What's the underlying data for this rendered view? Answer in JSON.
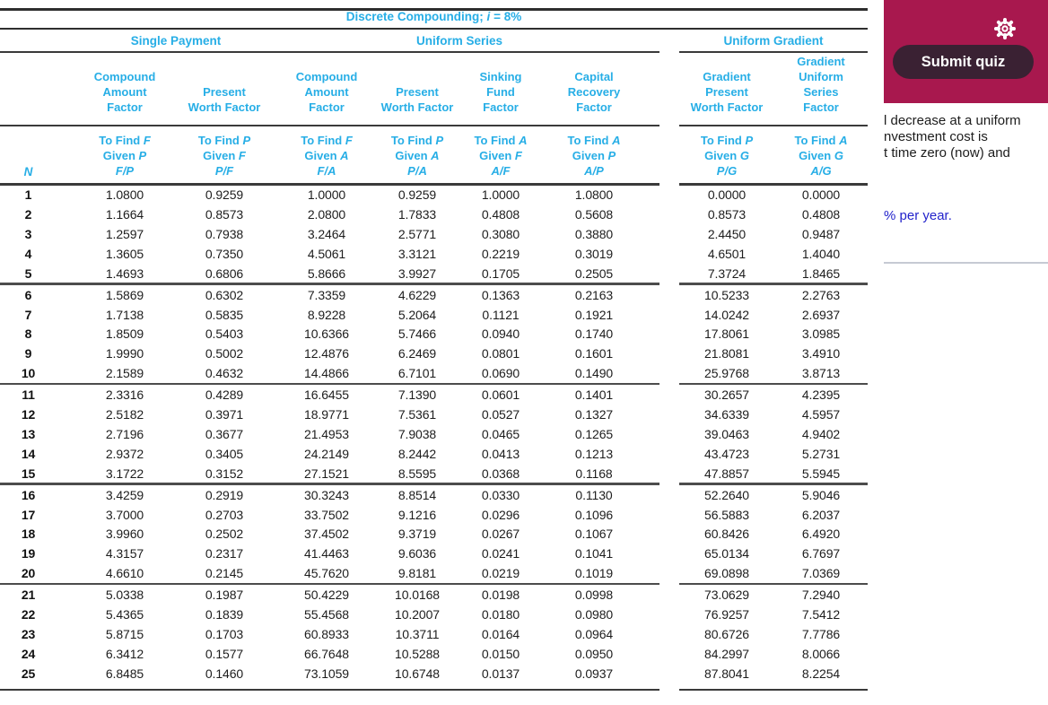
{
  "table": {
    "title": {
      "pre": "Discrete Compounding; ",
      "var": "i",
      "post": " = 8%"
    },
    "groups": {
      "single_payment": "Single Payment",
      "uniform_series": "Uniform Series",
      "uniform_gradient": "Uniform Gradient"
    },
    "n_label": "N",
    "columns": [
      {
        "factor": [
          "Compound",
          "Amount",
          "Factor"
        ],
        "find_pre": "To Find ",
        "find_var": "F",
        "given_pre": "Given ",
        "given_var": "P",
        "ratio": "F/P"
      },
      {
        "factor": [
          "Present",
          "Worth Factor"
        ],
        "find_pre": "To Find ",
        "find_var": "P",
        "given_pre": "Given ",
        "given_var": "F",
        "ratio": "P/F"
      },
      {
        "factor": [
          "Compound",
          "Amount",
          "Factor"
        ],
        "find_pre": "To Find ",
        "find_var": "F",
        "given_pre": "Given ",
        "given_var": "A",
        "ratio": "F/A"
      },
      {
        "factor": [
          "Present",
          "Worth Factor"
        ],
        "find_pre": "To Find ",
        "find_var": "P",
        "given_pre": "Given ",
        "given_var": "A",
        "ratio": "P/A"
      },
      {
        "factor": [
          "Sinking",
          "Fund",
          "Factor"
        ],
        "find_pre": "To Find ",
        "find_var": "A",
        "given_pre": "Given ",
        "given_var": "F",
        "ratio": "A/F"
      },
      {
        "factor": [
          "Capital",
          "Recovery",
          "Factor"
        ],
        "find_pre": "To Find ",
        "find_var": "A",
        "given_pre": "Given ",
        "given_var": "P",
        "ratio": "A/P"
      },
      {
        "factor": [
          "Gradient",
          "Present",
          "Worth Factor"
        ],
        "find_pre": "To Find ",
        "find_var": "P",
        "given_pre": "Given ",
        "given_var": "G",
        "ratio": "P/G"
      },
      {
        "factor": [
          "Gradient",
          "Uniform",
          "Series",
          "Factor"
        ],
        "find_pre": "To Find ",
        "find_var": "A",
        "given_pre": "Given ",
        "given_var": "G",
        "ratio": "A/G"
      }
    ],
    "rows": [
      [
        "1",
        "1.0800",
        "0.9259",
        "1.0000",
        "0.9259",
        "1.0000",
        "1.0800",
        "0.0000",
        "0.0000"
      ],
      [
        "2",
        "1.1664",
        "0.8573",
        "2.0800",
        "1.7833",
        "0.4808",
        "0.5608",
        "0.8573",
        "0.4808"
      ],
      [
        "3",
        "1.2597",
        "0.7938",
        "3.2464",
        "2.5771",
        "0.3080",
        "0.3880",
        "2.4450",
        "0.9487"
      ],
      [
        "4",
        "1.3605",
        "0.7350",
        "4.5061",
        "3.3121",
        "0.2219",
        "0.3019",
        "4.6501",
        "1.4040"
      ],
      [
        "5",
        "1.4693",
        "0.6806",
        "5.8666",
        "3.9927",
        "0.1705",
        "0.2505",
        "7.3724",
        "1.8465"
      ],
      [
        "6",
        "1.5869",
        "0.6302",
        "7.3359",
        "4.6229",
        "0.1363",
        "0.2163",
        "10.5233",
        "2.2763"
      ],
      [
        "7",
        "1.7138",
        "0.5835",
        "8.9228",
        "5.2064",
        "0.1121",
        "0.1921",
        "14.0242",
        "2.6937"
      ],
      [
        "8",
        "1.8509",
        "0.5403",
        "10.6366",
        "5.7466",
        "0.0940",
        "0.1740",
        "17.8061",
        "3.0985"
      ],
      [
        "9",
        "1.9990",
        "0.5002",
        "12.4876",
        "6.2469",
        "0.0801",
        "0.1601",
        "21.8081",
        "3.4910"
      ],
      [
        "10",
        "2.1589",
        "0.4632",
        "14.4866",
        "6.7101",
        "0.0690",
        "0.1490",
        "25.9768",
        "3.8713"
      ],
      [
        "11",
        "2.3316",
        "0.4289",
        "16.6455",
        "7.1390",
        "0.0601",
        "0.1401",
        "30.2657",
        "4.2395"
      ],
      [
        "12",
        "2.5182",
        "0.3971",
        "18.9771",
        "7.5361",
        "0.0527",
        "0.1327",
        "34.6339",
        "4.5957"
      ],
      [
        "13",
        "2.7196",
        "0.3677",
        "21.4953",
        "7.9038",
        "0.0465",
        "0.1265",
        "39.0463",
        "4.9402"
      ],
      [
        "14",
        "2.9372",
        "0.3405",
        "24.2149",
        "8.2442",
        "0.0413",
        "0.1213",
        "43.4723",
        "5.2731"
      ],
      [
        "15",
        "3.1722",
        "0.3152",
        "27.1521",
        "8.5595",
        "0.0368",
        "0.1168",
        "47.8857",
        "5.5945"
      ],
      [
        "16",
        "3.4259",
        "0.2919",
        "30.3243",
        "8.8514",
        "0.0330",
        "0.1130",
        "52.2640",
        "5.9046"
      ],
      [
        "17",
        "3.7000",
        "0.2703",
        "33.7502",
        "9.1216",
        "0.0296",
        "0.1096",
        "56.5883",
        "6.2037"
      ],
      [
        "18",
        "3.9960",
        "0.2502",
        "37.4502",
        "9.3719",
        "0.0267",
        "0.1067",
        "60.8426",
        "6.4920"
      ],
      [
        "19",
        "4.3157",
        "0.2317",
        "41.4463",
        "9.6036",
        "0.0241",
        "0.1041",
        "65.0134",
        "6.7697"
      ],
      [
        "20",
        "4.6610",
        "0.2145",
        "45.7620",
        "9.8181",
        "0.0219",
        "0.1019",
        "69.0898",
        "7.0369"
      ],
      [
        "21",
        "5.0338",
        "0.1987",
        "50.4229",
        "10.0168",
        "0.0198",
        "0.0998",
        "73.0629",
        "7.2940"
      ],
      [
        "22",
        "5.4365",
        "0.1839",
        "55.4568",
        "10.2007",
        "0.0180",
        "0.0980",
        "76.9257",
        "7.5412"
      ],
      [
        "23",
        "5.8715",
        "0.1703",
        "60.8933",
        "10.3711",
        "0.0164",
        "0.0964",
        "80.6726",
        "7.7786"
      ],
      [
        "24",
        "6.3412",
        "0.1577",
        "66.7648",
        "10.5288",
        "0.0150",
        "0.0950",
        "84.2997",
        "8.0066"
      ],
      [
        "25",
        "6.8485",
        "0.1460",
        "73.1059",
        "10.6748",
        "0.0137",
        "0.0937",
        "87.8041",
        "8.2254"
      ]
    ],
    "heading_color": "#27AEE6"
  },
  "sidebar": {
    "accent_color": "#A8184E",
    "button_color": "#3A2133",
    "submit_label": "Submit quiz",
    "gear_icon": "settings-gear",
    "text_lines": [
      "l decrease at a uniform",
      "nvestment cost is",
      "t time zero (now) and"
    ],
    "highlight_line": "% per year.",
    "highlight_color": "#2323CB"
  }
}
